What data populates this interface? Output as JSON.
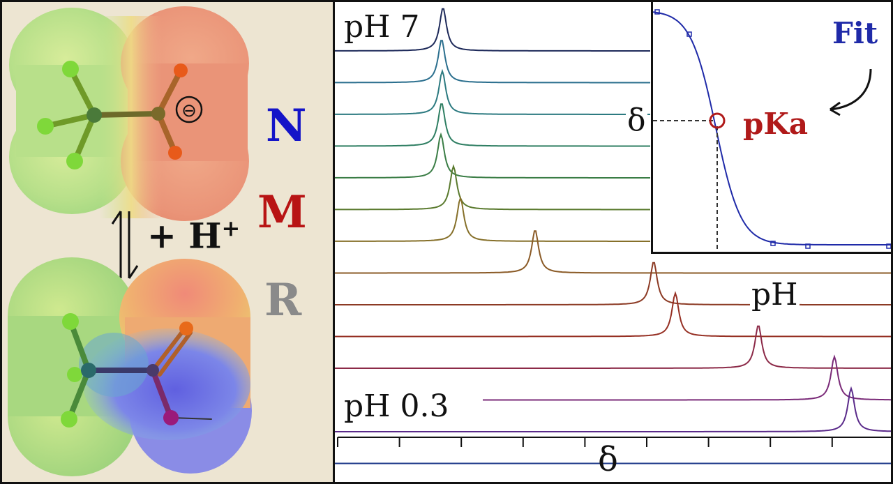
{
  "letters": {
    "n": {
      "text": "N",
      "color": "#1414c8"
    },
    "m": {
      "text": "M",
      "color": "#b81414"
    },
    "r": {
      "text": "R",
      "color": "#8a8a8a"
    }
  },
  "reaction": {
    "prefix": "+ H",
    "superscript": "+"
  },
  "charge_symbol": "⊖",
  "spectra": {
    "top_label": "pH 7",
    "bottom_label": "pH 0.3",
    "ph_label": "pH",
    "axis_label": "δ",
    "trace_colors": [
      "#1e2a5a",
      "#2b6f8e",
      "#2c7a80",
      "#2e7e62",
      "#3a7d45",
      "#5a7a2e",
      "#86702a",
      "#8a5a26",
      "#8c3a24",
      "#963024",
      "#8c2a48",
      "#7a2a78",
      "#5a2a8a",
      "#2a2a8a",
      "#1e3a8a"
    ]
  },
  "inset": {
    "fit_label": "Fit",
    "pka_label": "pKa",
    "delta_label": "δ",
    "curve_color": "#1f2aa8",
    "marker_color": "#b01a1a"
  }
}
